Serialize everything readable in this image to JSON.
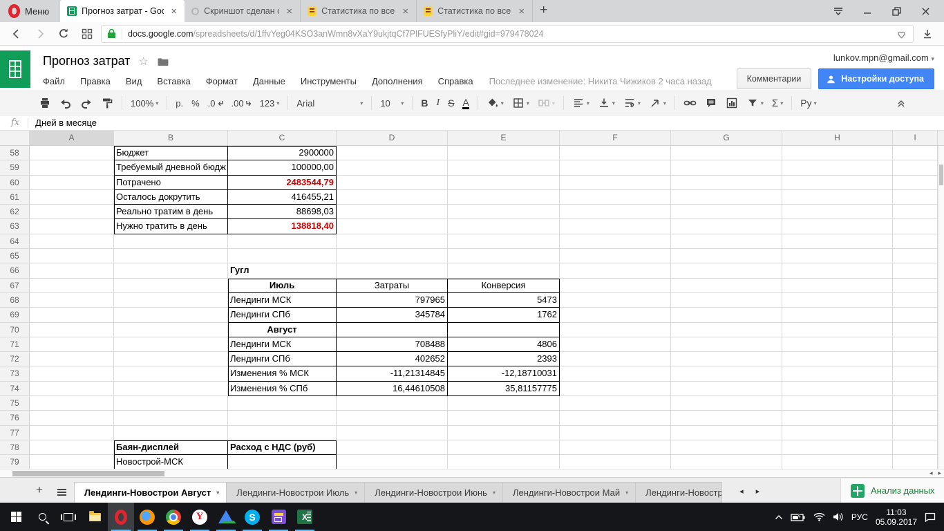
{
  "browser": {
    "menu_label": "Меню",
    "tabs": [
      {
        "title": "Прогноз затрат - Google",
        "icon": "sheets",
        "active": true
      },
      {
        "title": "Скриншот сделан с помо",
        "icon": "loading",
        "active": false
      },
      {
        "title": "Статистика по всем камп",
        "icon": "direct",
        "active": false
      },
      {
        "title": "Статистика по всем камп",
        "icon": "direct",
        "active": false
      }
    ],
    "new_tab_label": "+",
    "url_domain": "docs.google.com",
    "url_path": "/spreadsheets/d/1ffvYeg04KSO3anWmn8vXaY9ukjtqCf7PlFUESfyPliY/edit#gid=979478024"
  },
  "header": {
    "title": "Прогноз затрат",
    "star": "☆",
    "menus": [
      "Файл",
      "Правка",
      "Вид",
      "Вставка",
      "Формат",
      "Данные",
      "Инструменты",
      "Дополнения",
      "Справка"
    ],
    "last_edit": "Последнее изменение: Никита Чижиков 2 часа назад",
    "account": "lunkov.mpn@gmail.com",
    "comments_label": "Комментарии",
    "share_label": "Настройки доступа"
  },
  "toolbar": {
    "zoom": "100%",
    "currency": "р.",
    "percent": "%",
    "dec_down": ".0",
    "dec_up": ".00",
    "format": "123",
    "font": "Arial",
    "size": "10",
    "bold": "B",
    "italic": "I",
    "strike": "S",
    "color": "A",
    "sum": "Σ",
    "lang": "Ру"
  },
  "formula_bar": {
    "fx": "fx",
    "value": "Дней в месяце"
  },
  "grid": {
    "columns": [
      "A",
      "B",
      "C",
      "D",
      "E",
      "F",
      "G",
      "H",
      "I"
    ],
    "selected_column": "A",
    "row_start": 58,
    "row_end": 79,
    "cells": {
      "B58": {
        "v": "Бюджет",
        "s": ""
      },
      "C58": {
        "v": "2900000",
        "s": "num"
      },
      "B59": {
        "v": "Требуемый дневной бюдж",
        "s": ""
      },
      "C59": {
        "v": "100000,00",
        "s": "num"
      },
      "B60": {
        "v": "Потрачено",
        "s": ""
      },
      "C60": {
        "v": "2483544,79",
        "s": "num bold red"
      },
      "B61": {
        "v": "Осталось докрутить",
        "s": ""
      },
      "C61": {
        "v": "416455,21",
        "s": "num"
      },
      "B62": {
        "v": "Реально тратим в день",
        "s": ""
      },
      "C62": {
        "v": "88698,03",
        "s": "num"
      },
      "B63": {
        "v": "Нужно тратить в день",
        "s": ""
      },
      "C63": {
        "v": "138818,40",
        "s": "num bold red"
      },
      "C66": {
        "v": "Гугл",
        "s": "bold"
      },
      "C67": {
        "v": "Июль",
        "s": "bold center"
      },
      "D67": {
        "v": "Затраты",
        "s": "center"
      },
      "E67": {
        "v": "Конверсия",
        "s": "center"
      },
      "C68": {
        "v": "Лендинги МСК",
        "s": ""
      },
      "D68": {
        "v": "797965",
        "s": "num"
      },
      "E68": {
        "v": "5473",
        "s": "num"
      },
      "C69": {
        "v": "Лендинги СПб",
        "s": ""
      },
      "D69": {
        "v": "345784",
        "s": "num"
      },
      "E69": {
        "v": "1762",
        "s": "num"
      },
      "C70": {
        "v": "Август",
        "s": "bold center"
      },
      "C71": {
        "v": "Лендинги МСК",
        "s": ""
      },
      "D71": {
        "v": "708488",
        "s": "num"
      },
      "E71": {
        "v": "4806",
        "s": "num"
      },
      "C72": {
        "v": "Лендинги СПб",
        "s": ""
      },
      "D72": {
        "v": "402652",
        "s": "num"
      },
      "E72": {
        "v": "2393",
        "s": "num"
      },
      "C73": {
        "v": "Изменения % МСК",
        "s": ""
      },
      "D73": {
        "v": "-11,21314845",
        "s": "num"
      },
      "E73": {
        "v": "-12,18710031",
        "s": "num"
      },
      "C74": {
        "v": "Изменения % СПб",
        "s": ""
      },
      "D74": {
        "v": "16,44610508",
        "s": "num"
      },
      "E74": {
        "v": "35,81157775",
        "s": "num"
      },
      "B78": {
        "v": "Баян-дисплей",
        "s": "bold"
      },
      "C78": {
        "v": "Расход с НДС (руб)",
        "s": "bold"
      },
      "B79": {
        "v": "Новострой-МСК",
        "s": ""
      }
    },
    "border_regions": [
      [
        "B",
        58,
        "C",
        63
      ],
      [
        "C",
        67,
        "E",
        74
      ],
      [
        "B",
        78,
        "C",
        79
      ]
    ]
  },
  "sheet_bar": {
    "add_label": "+",
    "tabs": [
      {
        "label": "Лендинги-Новострои Август",
        "active": true,
        "cut": false
      },
      {
        "label": "Лендинги-Новострои Июль",
        "active": false,
        "cut": false
      },
      {
        "label": "Лендинги-Новострои Июнь",
        "active": false,
        "cut": false
      },
      {
        "label": "Лендинги-Новострои Май",
        "active": false,
        "cut": false
      },
      {
        "label": "Лендинги-Новострои Аг",
        "active": false,
        "cut": true
      }
    ],
    "explore_label": "Анализ данных"
  },
  "taskbar": {
    "system_icons": [
      "start",
      "search",
      "task-view",
      "explorer"
    ],
    "apps": [
      "opera",
      "firefox",
      "chrome",
      "yandex-browser",
      "adwords",
      "skype",
      "direct-commander",
      "excel"
    ],
    "active_app": "opera",
    "tray": {
      "lang": "РУС",
      "time": "11:03",
      "date": "05.09.2017"
    }
  },
  "colors": {
    "sheets_green": "#0f9d58",
    "share_blue": "#4285f4",
    "red_value": "#cc0000",
    "taskbar_underline": "#6cb5e8",
    "direct_yellow": "#ffd43d"
  }
}
